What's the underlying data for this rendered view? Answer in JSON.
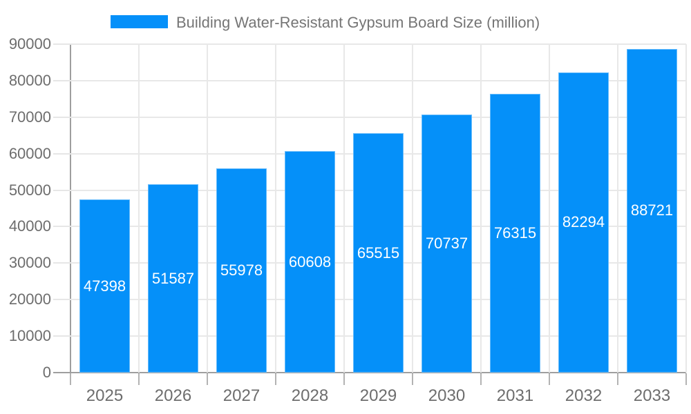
{
  "legend": {
    "label": "Building Water-Resistant Gypsum Board Size (million)"
  },
  "colors": {
    "bar": "#0590f9",
    "grid": "#e8e8e8",
    "y_tick": "#e6e6e6",
    "axis": "#9e9e9e",
    "x_tick": "#b3b3b3",
    "legend_text": "#757575",
    "axis_text": "#6d6d6d",
    "value_text": "#ffffff"
  },
  "chart_data": {
    "type": "bar",
    "title": "Building Water-Resistant Gypsum Board Size (million)",
    "categories": [
      "2025",
      "2026",
      "2027",
      "2028",
      "2029",
      "2030",
      "2031",
      "2032",
      "2033"
    ],
    "values": [
      47398,
      51587,
      55978,
      60608,
      65515,
      70737,
      76315,
      82294,
      88721
    ],
    "value_labels": [
      "47398",
      "51587",
      "55978",
      "60608",
      "65515",
      "70737",
      "76315",
      "82294",
      "88721"
    ],
    "xlabel": "",
    "ylabel": "",
    "ylim": [
      0,
      90000
    ],
    "ytick_step": 10000,
    "ytick_labels": [
      "0",
      "10000",
      "20000",
      "30000",
      "40000",
      "50000",
      "60000",
      "70000",
      "80000",
      "90000"
    ],
    "grid": true,
    "legend_position": "top",
    "value_label_position": "inside-center"
  }
}
